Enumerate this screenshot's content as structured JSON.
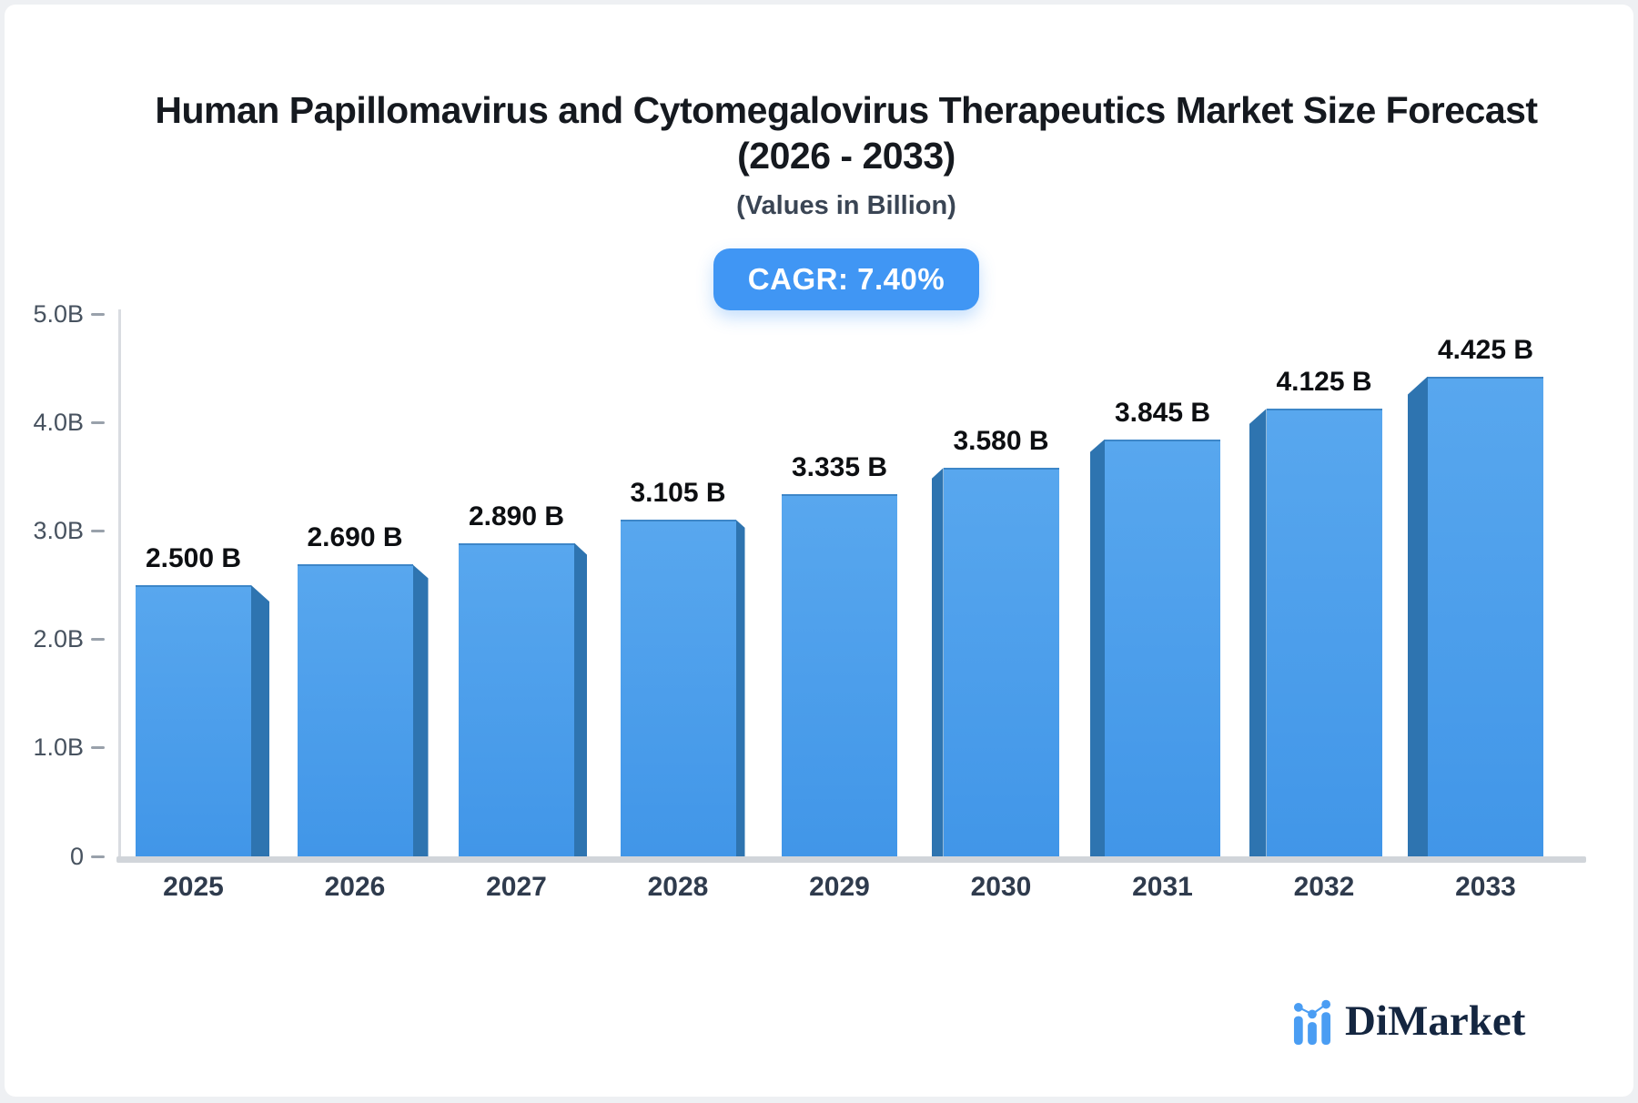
{
  "header": {
    "title_line1": "Human Papillomavirus and Cytomegalovirus Therapeutics Market Size Forecast",
    "title_line2": "(2026 - 2033)",
    "subtitle": "(Values in Billion)",
    "cagr_badge": "CAGR: 7.40%"
  },
  "brand": {
    "name": "DiMarket"
  },
  "colors": {
    "accent_blue": "#4096f4",
    "bar_front_top": "#58a7ee",
    "bar_front_bottom": "#4196e8",
    "bar_side": "#2e74b0",
    "axis_gray": "#d9dce1",
    "baseline_gray": "#d1d5da"
  },
  "chart_data": {
    "type": "bar",
    "title": "Human Papillomavirus and Cytomegalovirus Therapeutics Market Size Forecast (2026 - 2033)",
    "subtitle": "(Values in Billion)",
    "annotation": "CAGR: 7.40%",
    "categories": [
      "2025",
      "2026",
      "2027",
      "2028",
      "2029",
      "2030",
      "2031",
      "2032",
      "2033"
    ],
    "values": [
      2.5,
      2.69,
      2.89,
      3.105,
      3.335,
      3.58,
      3.845,
      4.125,
      4.425
    ],
    "value_labels": [
      "2.500 B",
      "2.690 B",
      "2.890 B",
      "3.105 B",
      "3.335 B",
      "3.580 B",
      "3.845 B",
      "4.125 B",
      "4.425 B"
    ],
    "xlabel": "",
    "ylabel": "",
    "ylim": [
      0,
      5
    ],
    "ytick_values": [
      0,
      1,
      2,
      3,
      4,
      5
    ],
    "ytick_labels": [
      "0",
      "1.0B",
      "2.0B",
      "3.0B",
      "4.0B",
      "5.0B"
    ],
    "grid": false,
    "legend": false
  }
}
